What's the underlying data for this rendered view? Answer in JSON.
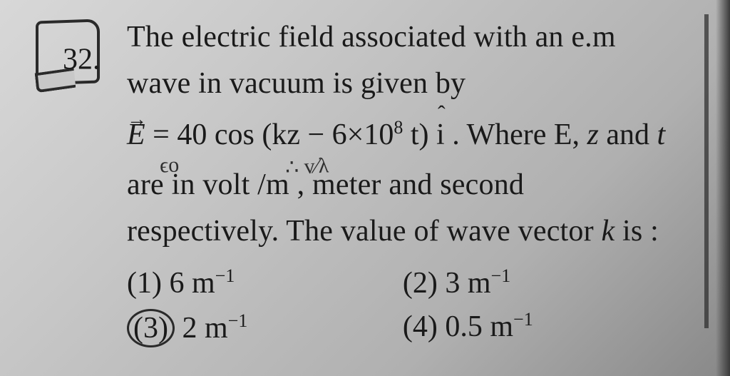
{
  "question": {
    "number": "32.",
    "line1": "The electric field associated with an e.m",
    "line2": "wave in vacuum is given by",
    "equation_lhs": "E",
    "equation_eq": "=",
    "equation_amp": "40",
    "equation_cos": "cos",
    "equation_arg1": "kz",
    "equation_arg2": "− 6×10",
    "equation_exp": "8",
    "equation_arg3": " t",
    "equation_unitvec": "i",
    "equation_tail1": ". Where E, ",
    "equation_tail_z": "z",
    "equation_tail2": " and ",
    "equation_tail_t": "t",
    "annotation1": "ϵo",
    "annotation2": "∴ v⁄λ",
    "line4": "are in volt /m , meter and second",
    "line5_a": "respectively. The value of wave vector ",
    "line5_k": "k",
    "line5_b": " is :"
  },
  "options": {
    "opt1_num": "(1)",
    "opt1_val": "6 m",
    "opt1_exp": "−1",
    "opt2_num": "(2)",
    "opt2_val": "3 m",
    "opt2_exp": "−1",
    "opt3_num": "(3)",
    "opt3_val": "2 m",
    "opt3_exp": "−1",
    "opt4_num": "(4)",
    "opt4_val": "0.5 m",
    "opt4_exp": "−1"
  },
  "style": {
    "text_color": "#1a1a1a",
    "bg_gradient_from": "#d8d8d8",
    "bg_gradient_to": "#888888",
    "font_main": "Times New Roman",
    "font_annotation": "cursive",
    "q_fontsize_pt": 32
  }
}
